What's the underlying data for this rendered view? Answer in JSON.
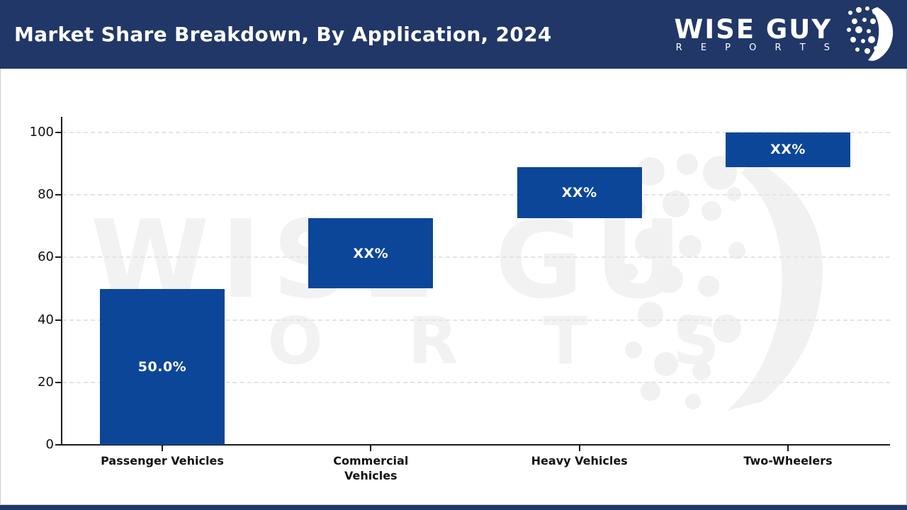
{
  "header": {
    "title": "Market Share Breakdown, By Application, 2024",
    "brand": {
      "line1": "WISE GUY",
      "line2": "R E P O R T S"
    }
  },
  "icons": {
    "brand_face": "dotted-human-head-profile",
    "watermark_face": "dotted-human-head-profile"
  },
  "watermark": {
    "line1": "WISE GU",
    "line2": "P O R T S"
  },
  "colors": {
    "header_bg": "#203767",
    "footer_bg": "#203767",
    "bar": "#0c4699",
    "bar_label": "#ffffff",
    "axis": "#1a1a1a",
    "gridline": "#e4e4e4",
    "watermark": "#f2f2f2",
    "title_text": "#ffffff"
  },
  "chart_data": {
    "type": "bar",
    "subtype": "waterfall",
    "title": "Market Share Breakdown, By Application, 2024",
    "categories": [
      "Passenger Vehicles",
      "Commercial\nVehicles",
      "Heavy Vehicles",
      "Two-Wheelers"
    ],
    "segments": [
      {
        "category": "Passenger Vehicles",
        "start": 0,
        "end": 50,
        "value": 50.0,
        "label": "50.0%"
      },
      {
        "category": "Commercial Vehicles",
        "start": 50,
        "end": 72.5,
        "value": null,
        "label": "XX%"
      },
      {
        "category": "Heavy Vehicles",
        "start": 72.5,
        "end": 89,
        "value": null,
        "label": "XX%"
      },
      {
        "category": "Two-Wheelers",
        "start": 89,
        "end": 100,
        "value": null,
        "label": "XX%"
      }
    ],
    "xlabel": "",
    "ylabel": "",
    "ylim": [
      0,
      100
    ],
    "yticks": [
      0,
      20,
      40,
      60,
      80,
      100
    ],
    "grid": "horizontal-dashed",
    "legend": "none"
  }
}
